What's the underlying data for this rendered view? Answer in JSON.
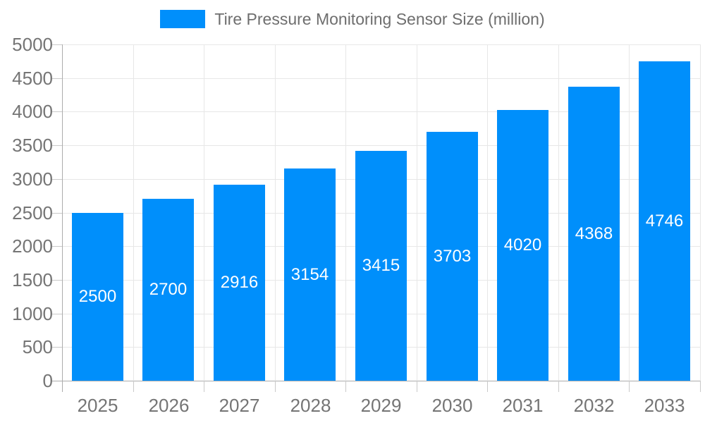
{
  "chart_data": {
    "type": "bar",
    "title": "Tire Pressure Monitoring Sensor Size (million)",
    "categories": [
      "2025",
      "2026",
      "2027",
      "2028",
      "2029",
      "2030",
      "2031",
      "2032",
      "2033"
    ],
    "values": [
      2500,
      2700,
      2916,
      3154,
      3415,
      3703,
      4020,
      4368,
      4746
    ],
    "xlabel": "",
    "ylabel": "",
    "ylim": [
      0,
      5000
    ],
    "ytick_interval": 500,
    "grid": true,
    "legend_position": "top-center",
    "value_labels": "inside-center",
    "colors": {
      "bar": "#008FFB",
      "value_label": "#FFFFFF",
      "axis_text": "#757575",
      "legend_text": "#6E6E6E",
      "gridline": "#E7E7E7",
      "axis_line": "#ACACAC",
      "tick": "#C9C9C9",
      "background": "#FFFFFF"
    }
  }
}
